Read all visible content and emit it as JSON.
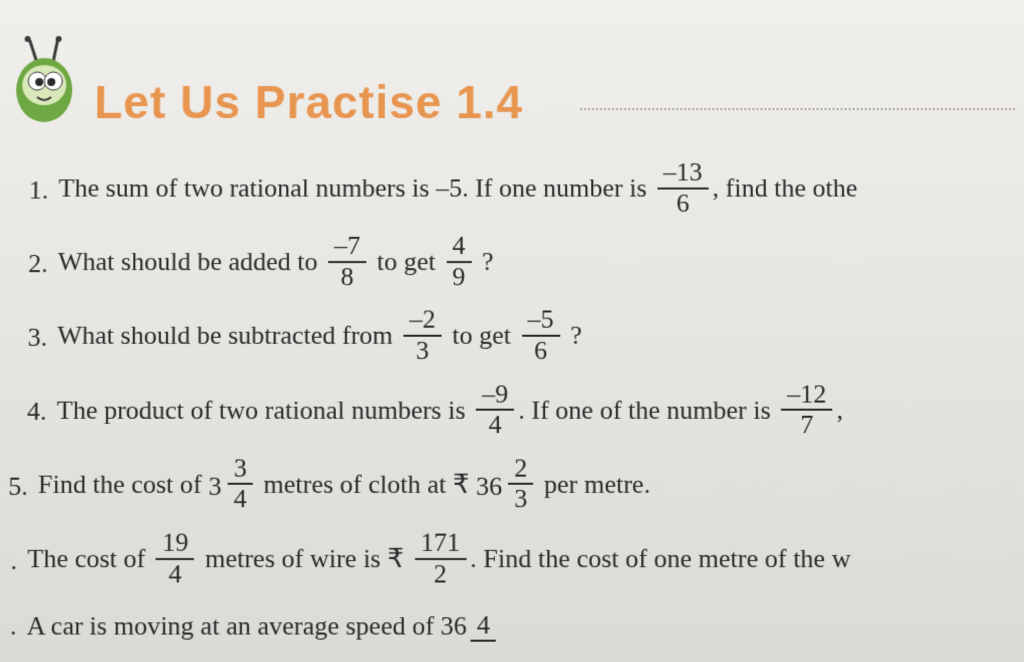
{
  "heading": "Let Us Practise 1.4",
  "colors": {
    "heading": "#e89550",
    "text": "#2a2a2a",
    "background": "#e8e7e5",
    "dotted": "#b0a89a"
  },
  "typography": {
    "heading_fontsize": 46,
    "body_fontsize": 26,
    "heading_font": "Comic Sans MS",
    "body_font": "Georgia"
  },
  "mascot": {
    "body_color": "#6ea843",
    "eye_color": "#ffffff",
    "pupil_color": "#2a2a2a",
    "antenna_color": "#3a3a3a"
  },
  "questions": [
    {
      "num": "1.",
      "parts": [
        {
          "t": "text",
          "v": "The sum of two rational numbers is –5. If one number is "
        },
        {
          "t": "frac",
          "num": "–13",
          "den": "6"
        },
        {
          "t": "text",
          "v": ", find the othe"
        }
      ]
    },
    {
      "num": "2.",
      "parts": [
        {
          "t": "text",
          "v": "What should be added to "
        },
        {
          "t": "frac",
          "num": "–7",
          "den": "8"
        },
        {
          "t": "text",
          "v": " to get "
        },
        {
          "t": "frac",
          "num": "4",
          "den": "9"
        },
        {
          "t": "text",
          "v": " ?"
        }
      ]
    },
    {
      "num": "3.",
      "parts": [
        {
          "t": "text",
          "v": "What should be subtracted from "
        },
        {
          "t": "frac",
          "num": "–2",
          "den": "3"
        },
        {
          "t": "text",
          "v": " to get "
        },
        {
          "t": "frac",
          "num": "–5",
          "den": "6"
        },
        {
          "t": "text",
          "v": " ?"
        }
      ]
    },
    {
      "num": "4.",
      "parts": [
        {
          "t": "text",
          "v": "The product of two rational numbers is "
        },
        {
          "t": "frac",
          "num": "–9",
          "den": "4"
        },
        {
          "t": "text",
          "v": ". If one of the number is "
        },
        {
          "t": "frac",
          "num": "–12",
          "den": "7"
        },
        {
          "t": "text",
          "v": ","
        }
      ]
    },
    {
      "num": "5.",
      "parts": [
        {
          "t": "text",
          "v": "Find the cost of "
        },
        {
          "t": "mixed",
          "whole": "3",
          "num": "3",
          "den": "4"
        },
        {
          "t": "text",
          "v": " metres of cloth at ₹ "
        },
        {
          "t": "mixed",
          "whole": "36",
          "num": "2",
          "den": "3"
        },
        {
          "t": "text",
          "v": " per metre."
        }
      ]
    },
    {
      "num": ".",
      "parts": [
        {
          "t": "text",
          "v": "The cost of "
        },
        {
          "t": "frac",
          "num": "19",
          "den": "4"
        },
        {
          "t": "text",
          "v": " metres of wire is ₹ "
        },
        {
          "t": "frac",
          "num": "171",
          "den": "2"
        },
        {
          "t": "text",
          "v": ". Find the cost of one metre of the w"
        }
      ]
    },
    {
      "num": ".",
      "parts": [
        {
          "t": "text",
          "v": "A car is moving at an average speed of 36"
        },
        {
          "t": "frac",
          "num": "4",
          "den": ""
        },
        {
          "t": "text",
          "v": ""
        }
      ]
    }
  ]
}
